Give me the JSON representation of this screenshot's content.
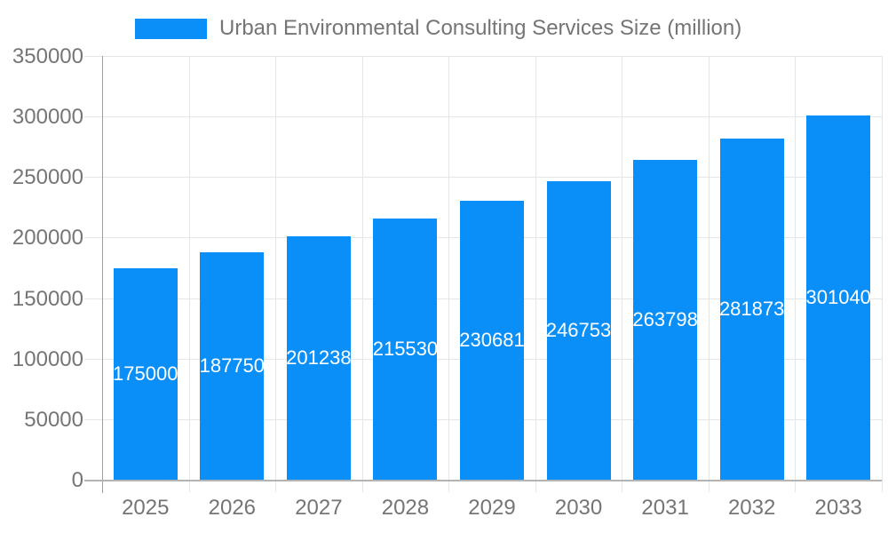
{
  "chart_data": {
    "type": "bar",
    "title": "Urban Environmental Consulting Services Size (million)",
    "categories": [
      "2025",
      "2026",
      "2027",
      "2028",
      "2029",
      "2030",
      "2031",
      "2032",
      "2033"
    ],
    "values": [
      175000,
      187750,
      201238,
      215530,
      230681,
      246753,
      263798,
      281873,
      301040
    ],
    "bar_labels": [
      "175000",
      "187750",
      "201238",
      "215530",
      "230681",
      "246753",
      "263798",
      "281873",
      "301040"
    ],
    "xlabel": "",
    "ylabel": "",
    "ylim": [
      0,
      350000
    ],
    "ytick_interval": 50000,
    "ytick_labels": [
      "0",
      "50000",
      "100000",
      "150000",
      "200000",
      "250000",
      "300000",
      "350000"
    ],
    "grid": "horizontal gridlines at 50000 steps plus vertical category-boundary gridlines",
    "legend_position": "top",
    "colors": {
      "bar": "#0a8ff9",
      "grid": "#e6e6e6",
      "axis_line": "#9e9e9e",
      "baseline": "#b3b3b3",
      "tick_text": "#757575",
      "annotation_text": "#ffffff",
      "background": "#ffffff"
    }
  }
}
